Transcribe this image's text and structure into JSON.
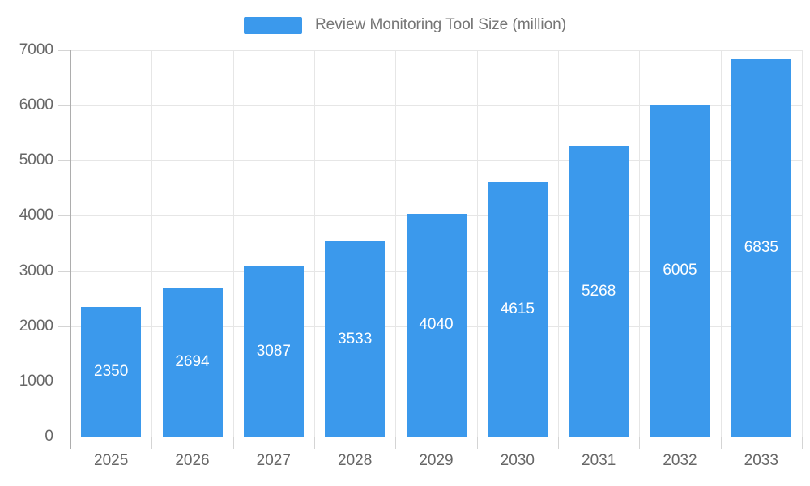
{
  "chart_data": {
    "type": "bar",
    "title": "Review Monitoring Tool Size (million)",
    "categories": [
      "2025",
      "2026",
      "2027",
      "2028",
      "2029",
      "2030",
      "2031",
      "2032",
      "2033"
    ],
    "values": [
      2350,
      2694,
      3087,
      3533,
      4040,
      4615,
      5268,
      6005,
      6835
    ],
    "series": [
      {
        "name": "Review Monitoring Tool Size (million)",
        "values": [
          2350,
          2694,
          3087,
          3533,
          4040,
          4615,
          5268,
          6005,
          6835
        ]
      }
    ],
    "xlabel": "",
    "ylabel": "",
    "ylim": [
      0,
      7000
    ],
    "yticks": [
      0,
      1000,
      2000,
      3000,
      4000,
      5000,
      6000,
      7000
    ],
    "grid": true,
    "legend_position": "top",
    "value_label_position": "inside-center"
  },
  "colors": {
    "bar": "#3B99EC",
    "grid": "#E6E6E6",
    "axis": "#ADADAD",
    "tick": "#D4D4D4",
    "tick_text": "#666666",
    "legend_text": "#757575",
    "value_label_text": "#FFFFFF",
    "background": "#FFFFFF"
  }
}
